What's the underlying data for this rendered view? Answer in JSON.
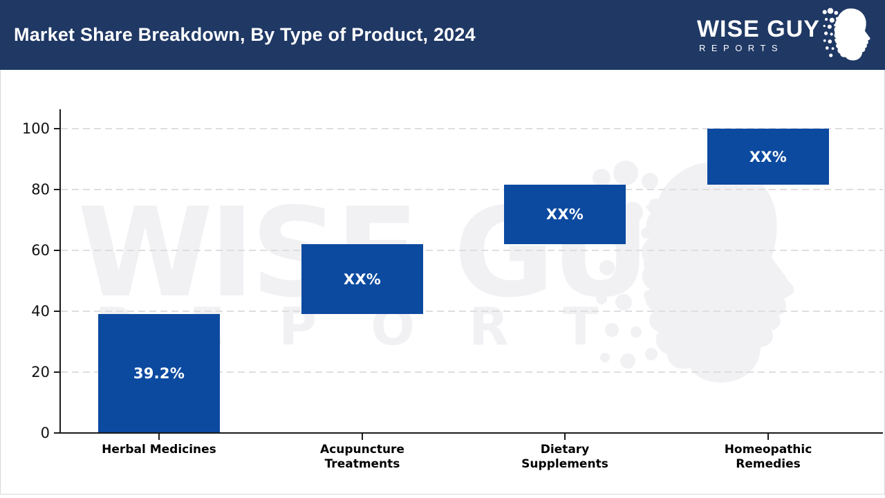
{
  "header": {
    "title": "Market Share Breakdown, By Type of Product, 2024",
    "logo": {
      "line1": "WISE GUY",
      "line2": "REPORTS"
    }
  },
  "watermark": {
    "line1": "WISE GUY",
    "line2": "R E P O R T S"
  },
  "chart_data": {
    "type": "bar",
    "subtype": "floating-stacked-waterfall",
    "title": "Market Share Breakdown, By Type of Product, 2024",
    "xlabel": "",
    "ylabel": "",
    "ylim": [
      0,
      105
    ],
    "yticks": [
      0,
      20,
      40,
      60,
      80,
      100
    ],
    "grid": "horizontal-dashed",
    "legend": "none",
    "bar_color": "#0c4aa0",
    "categories": [
      "Herbal Medicines",
      "Acupuncture Treatments",
      "Dietary Supplements",
      "Homeopathic Remedies"
    ],
    "bars": [
      {
        "name": "Herbal Medicines",
        "lines": [
          "Herbal Medicines"
        ],
        "start": 0,
        "end": 39.2,
        "value": 39.2,
        "label": "39.2%"
      },
      {
        "name": "Acupuncture Treatments",
        "lines": [
          "Acupuncture",
          "Treatments"
        ],
        "start": 39.2,
        "end": 62.0,
        "value": 22.8,
        "label": "XX%"
      },
      {
        "name": "Dietary Supplements",
        "lines": [
          "Dietary",
          "Supplements"
        ],
        "start": 62.0,
        "end": 81.6,
        "value": 19.6,
        "label": "XX%"
      },
      {
        "name": "Homeopathic Remedies",
        "lines": [
          "Homeopathic",
          "Remedies"
        ],
        "start": 81.6,
        "end": 100,
        "value": 18.4,
        "label": "XX%"
      }
    ]
  }
}
